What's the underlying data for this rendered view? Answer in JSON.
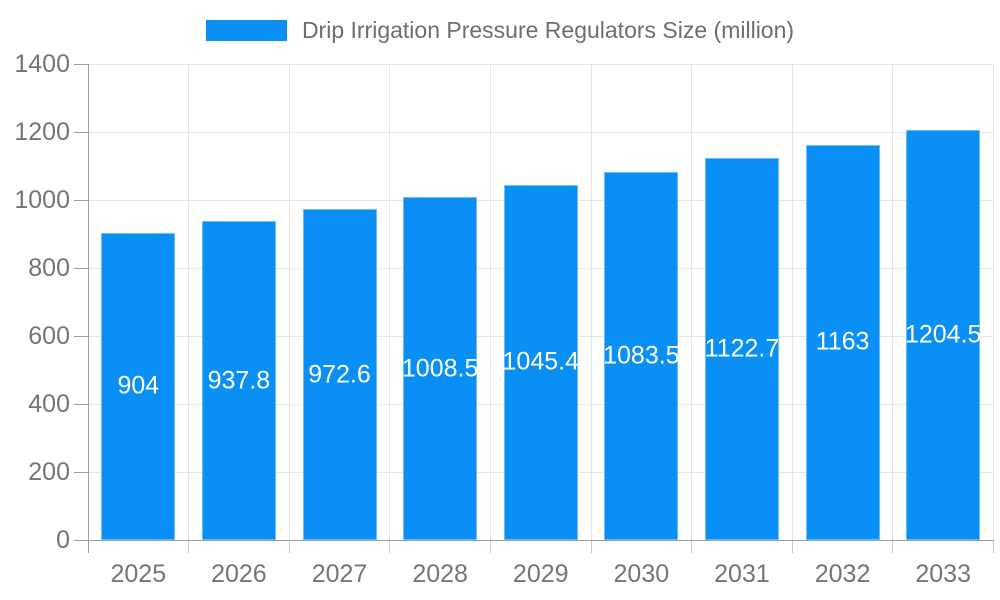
{
  "chart_data": {
    "type": "bar",
    "title": "Drip Irrigation Pressure Regulators Size (million)",
    "categories": [
      "2025",
      "2026",
      "2027",
      "2028",
      "2029",
      "2030",
      "2031",
      "2032",
      "2033"
    ],
    "series": [
      {
        "name": "Drip Irrigation Pressure Regulators Size (million)",
        "values": [
          904,
          937.8,
          972.6,
          1008.5,
          1045.4,
          1083.5,
          1122.7,
          1163,
          1204.5
        ],
        "value_labels": [
          "904",
          "937.8",
          "972.6",
          "1008.5",
          "1045.4",
          "1083.5",
          "1122.7",
          "1163",
          "1204.5"
        ]
      }
    ],
    "xlabel": "",
    "ylabel": "",
    "ylim": [
      0,
      1400
    ],
    "y_ticks": [
      0,
      200,
      400,
      600,
      800,
      1000,
      1200,
      1400
    ],
    "y_tick_labels": [
      "0",
      "200",
      "400",
      "600",
      "800",
      "1000",
      "1200",
      "1400"
    ],
    "grid": true,
    "legend_position": "top",
    "colors": {
      "bar_fill": "#0a90f5",
      "bar_value_text": "#ffffff",
      "axis_line": "#9e9e9e",
      "gridline": "#e6e6e6",
      "tick_label_text": "#757575",
      "legend_text": "#6e6e6e",
      "background": "#ffffff"
    }
  }
}
